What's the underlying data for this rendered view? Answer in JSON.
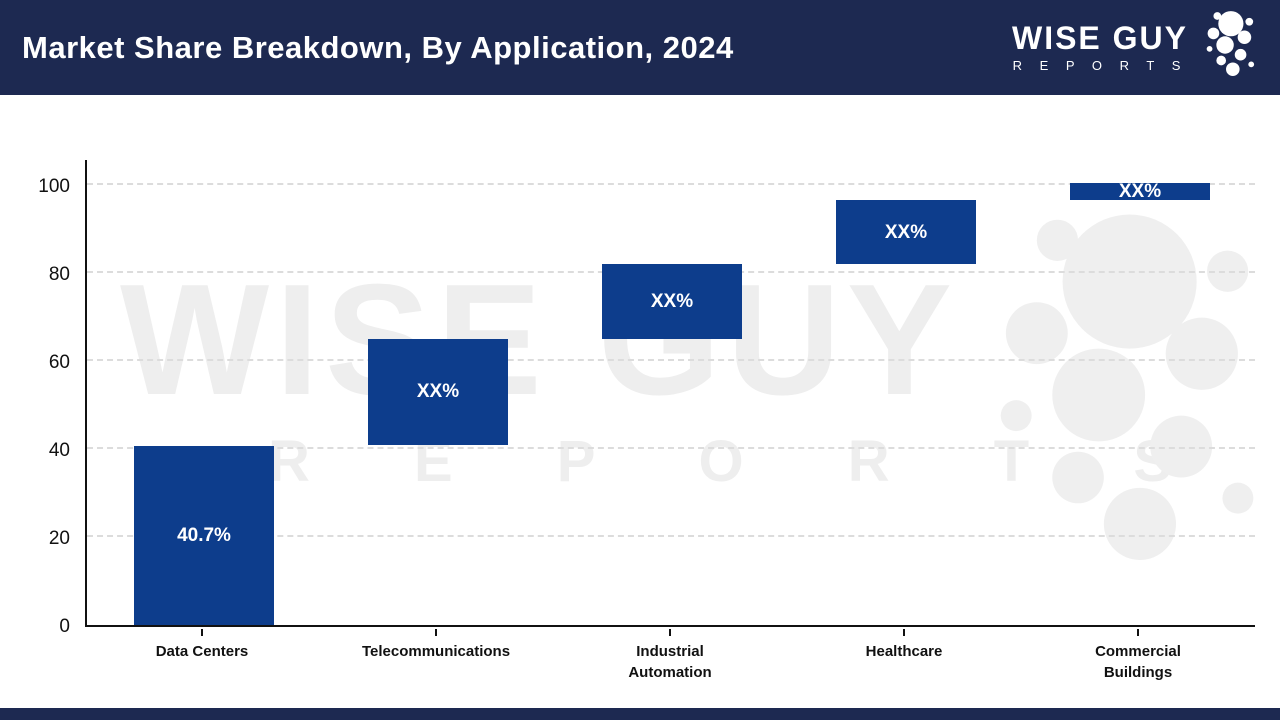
{
  "header": {
    "title": "Market Share Breakdown, By Application, 2024",
    "brand": {
      "name": "WISE GUY",
      "tagline": "R E P O R T S"
    }
  },
  "watermark": {
    "name": "WISE GUY",
    "tagline": "R E P O R T S"
  },
  "chart_data": {
    "type": "bar",
    "subtype": "waterfall-floating-bars",
    "title": "Market Share Breakdown, By Application, 2024",
    "categories": [
      "Data Centers",
      "Telecommunications",
      "Industrial\nAutomation",
      "Healthcare",
      "Commercial\nBuildings"
    ],
    "segments": [
      {
        "category": "Data Centers",
        "start": 0,
        "end": 40.7,
        "label": "40.7%"
      },
      {
        "category": "Telecommunications",
        "start": 41,
        "end": 65,
        "label": "XX%"
      },
      {
        "category": "Industrial Automation",
        "start": 65,
        "end": 82,
        "label": "XX%"
      },
      {
        "category": "Healthcare",
        "start": 82,
        "end": 96.5,
        "label": "XX%"
      },
      {
        "category": "Commercial Buildings",
        "start": 96.5,
        "end": 100.4,
        "label": "XX%"
      }
    ],
    "yticks": [
      0,
      20,
      40,
      60,
      80,
      100
    ],
    "ylim": [
      0,
      100
    ],
    "bar_color": "#0d3d8c",
    "grid": "dashed-horizontal",
    "legend": false
  }
}
